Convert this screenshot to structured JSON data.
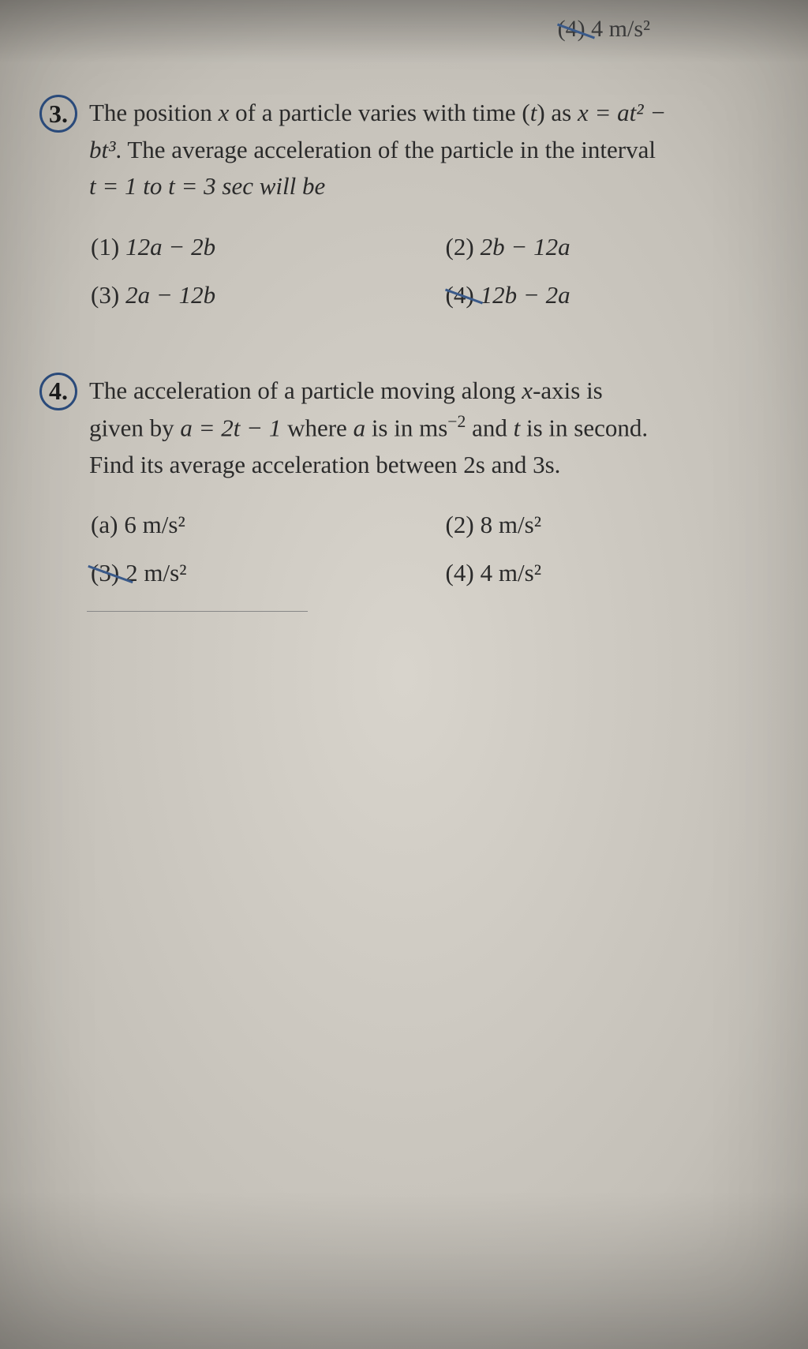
{
  "top_fragment": "(4) 4 m/s²",
  "question3": {
    "number": "3.",
    "text_line1": "The position ",
    "var_x": "x",
    "text_line1b": " of a particle varies with time (",
    "var_t": "t",
    "text_line1c": ") as ",
    "eq1": "x = at² − ",
    "eq2": "bt³",
    "text_line2a": ". The average acceleration of the particle in the interval",
    "text_line3": "t = 1 to t = 3 sec will be",
    "options": {
      "opt1_label": "(1)",
      "opt1_text": " 12a − 2b",
      "opt2_label": "(2)",
      "opt2_text": " 2b − 12a",
      "opt3_label": "(3)",
      "opt3_text": " 2a − 12b",
      "opt4_label": "(4)",
      "opt4_text": " 12b − 2a"
    }
  },
  "question4": {
    "number": "4.",
    "text_line1": "The acceleration of a particle moving along ",
    "var_xaxis": "x",
    "text_line1b": "-axis is",
    "text_line2a": "given by ",
    "eq": "a = 2t − 1",
    "text_line2b": " where ",
    "var_a": "a",
    "text_line2c": " is in ms",
    "exp_neg2": "−2",
    "text_line2d": " and ",
    "var_t2": "t",
    "text_line2e": " is in second.",
    "text_line3": "Find its average acceleration between 2s and 3s.",
    "options": {
      "opt_a_label": "(a)",
      "opt_a_text": " 6 m/s²",
      "opt2_label": "(2)",
      "opt2_text": " 8 m/s²",
      "opt3_label": "(3)",
      "opt3_text": " 2 m/s²",
      "opt4_label": "(4)",
      "opt4_text": " 4 m/s²"
    }
  }
}
